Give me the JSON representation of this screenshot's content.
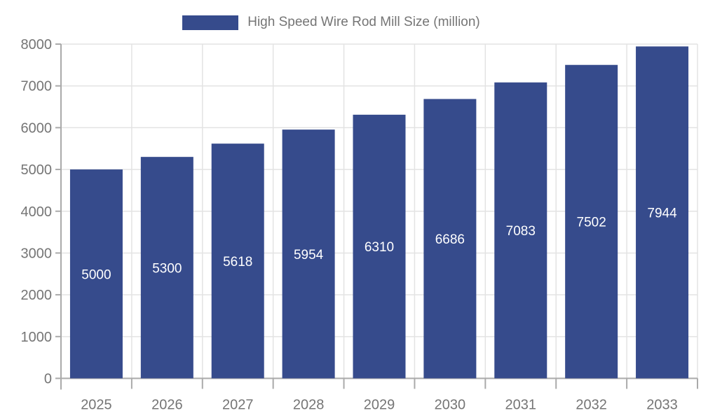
{
  "legend": {
    "label": "High Speed Wire Rod Mill Size (million)"
  },
  "chart_data": {
    "type": "bar",
    "title": "High Speed Wire Rod Mill Size (million)",
    "categories": [
      "2025",
      "2026",
      "2027",
      "2028",
      "2029",
      "2030",
      "2031",
      "2032",
      "2033"
    ],
    "values": [
      5000,
      5300,
      5618,
      5954,
      6310,
      6686,
      7083,
      7502,
      7944
    ],
    "xlabel": "",
    "ylabel": "",
    "ylim": [
      0,
      8000
    ],
    "yticks": [
      0,
      1000,
      2000,
      3000,
      4000,
      5000,
      6000,
      7000,
      8000
    ],
    "grid": true,
    "legend_position": "top-center",
    "value_labels": "inside-center",
    "colors": {
      "bar": "#364B8C",
      "value_label": "#FFFFFF",
      "axis_text": "#757575",
      "grid_line": "#E3E3E3",
      "axis_line": "#AAAAAA"
    }
  }
}
